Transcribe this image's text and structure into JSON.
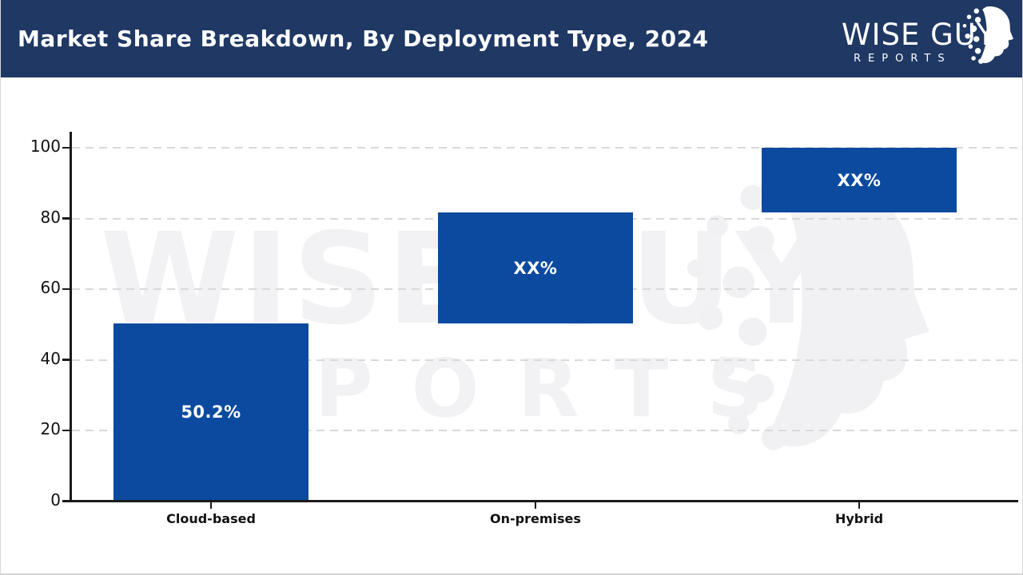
{
  "header": {
    "title": "Market Share Breakdown, By Deployment Type, 2024",
    "logo": {
      "primary": "WISE GUY",
      "secondary": "REPORTS"
    }
  },
  "watermark": {
    "primary": "WISE GUY",
    "secondary": "REPORTS"
  },
  "colors": {
    "header_bg": "#1f3864",
    "bar_fill": "#0b4a9f",
    "bar_label_text": "#ffffff",
    "grid": "#d9d9d9",
    "axis": "#1a1a1a",
    "watermark": "#f2f2f4",
    "page_bg": "#ffffff"
  },
  "chart_data": {
    "type": "bar",
    "subtype": "floating-waterfall",
    "title": "Market Share Breakdown, By Deployment Type, 2024",
    "categories": [
      "Cloud-based",
      "On-premises",
      "Hybrid"
    ],
    "segments": [
      {
        "category": "Cloud-based",
        "start": 0,
        "end": 50.2,
        "label": "50.2%"
      },
      {
        "category": "On-premises",
        "start": 50.2,
        "end": 81.7,
        "label": "XX%"
      },
      {
        "category": "Hybrid",
        "start": 81.7,
        "end": 100,
        "label": "XX%"
      }
    ],
    "xlabel": "",
    "ylabel": "",
    "yticks": [
      0,
      20,
      40,
      60,
      80,
      100
    ],
    "ylim": [
      0,
      104.5
    ],
    "grid": "horizontal-dashed",
    "legend": "none",
    "unit": "percent"
  }
}
